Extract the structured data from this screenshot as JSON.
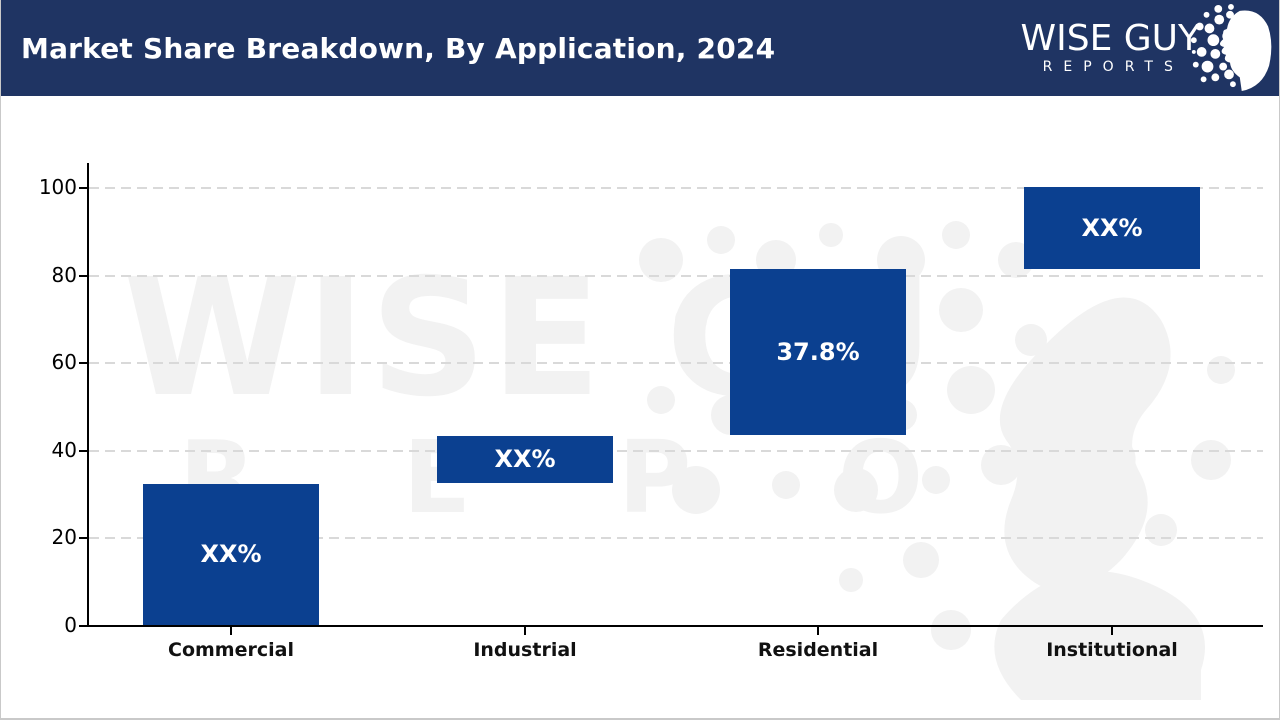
{
  "header": {
    "title": "Market Share Breakdown, By Application, 2024",
    "bg_color": "#1f3463",
    "logo": {
      "line1": "WISE GUY",
      "line2": "REPORTS"
    }
  },
  "watermark": {
    "line1": "WISE GU",
    "line2": "R E P O R T S"
  },
  "chart_data": {
    "type": "bar",
    "subtype": "waterfall",
    "title": "Market Share Breakdown, By Application, 2024",
    "categories": [
      "Commercial",
      "Industrial",
      "Residential",
      "Institutional"
    ],
    "segments": [
      {
        "category": "Commercial",
        "start": 0,
        "end": 32.3,
        "label": "XX%"
      },
      {
        "category": "Industrial",
        "start": 32.4,
        "end": 43.2,
        "label": "XX%"
      },
      {
        "category": "Residential",
        "start": 43.4,
        "end": 81.2,
        "label": "37.8%"
      },
      {
        "category": "Institutional",
        "start": 81.2,
        "end": 100,
        "label": "XX%"
      }
    ],
    "xlabel": "",
    "ylabel": "",
    "ylim": [
      0,
      100
    ],
    "yticks": [
      0,
      20,
      40,
      60,
      80,
      100
    ],
    "grid": "horizontal-dashed",
    "legend": "none",
    "bar_color": "#0b4090",
    "bar_label_color": "#ffffff",
    "axis_color": "#000000",
    "grid_color": "#d9d9d9"
  }
}
